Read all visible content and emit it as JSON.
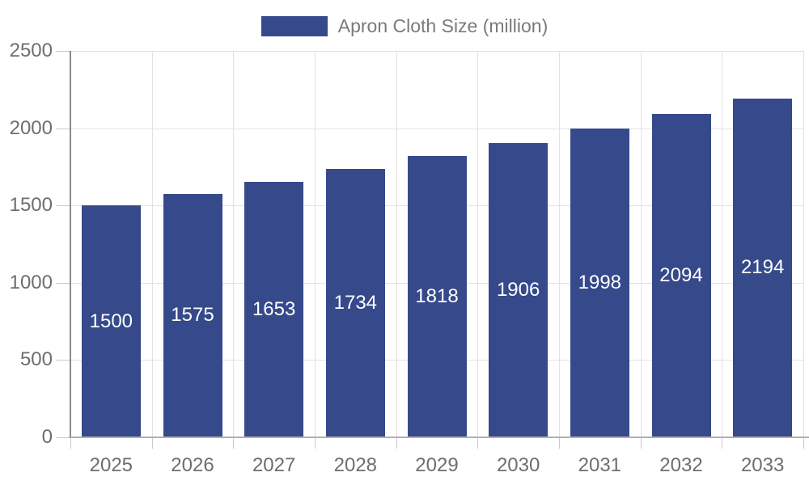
{
  "chart_data": {
    "type": "bar",
    "title": "Apron Cloth Size (million)",
    "categories": [
      "2025",
      "2026",
      "2027",
      "2028",
      "2029",
      "2030",
      "2031",
      "2032",
      "2033"
    ],
    "series": [
      {
        "name": "Apron Cloth Size (million)",
        "values": [
          1500,
          1575,
          1653,
          1734,
          1818,
          1906,
          1998,
          2094,
          2194
        ],
        "color": "#36498B"
      }
    ],
    "xlabel": "",
    "ylabel": "",
    "ylim": [
      0,
      2500
    ],
    "yticks": [
      0,
      500,
      1000,
      1500,
      2000,
      2500
    ],
    "grid": true,
    "legend_position": "top-center",
    "value_labels": "inside-center"
  },
  "colors": {
    "bar": "#36498B",
    "bar_label": "#FFFFFF",
    "axis_label": "#6E6E6E",
    "legend_label": "#7A7A7A",
    "gridline": "#E2E2E2",
    "tick": "#C9C9C9",
    "x_axis_line": "#B0B0B0",
    "y_axis_line": "#8A8A8A",
    "background": "#FFFFFF"
  }
}
